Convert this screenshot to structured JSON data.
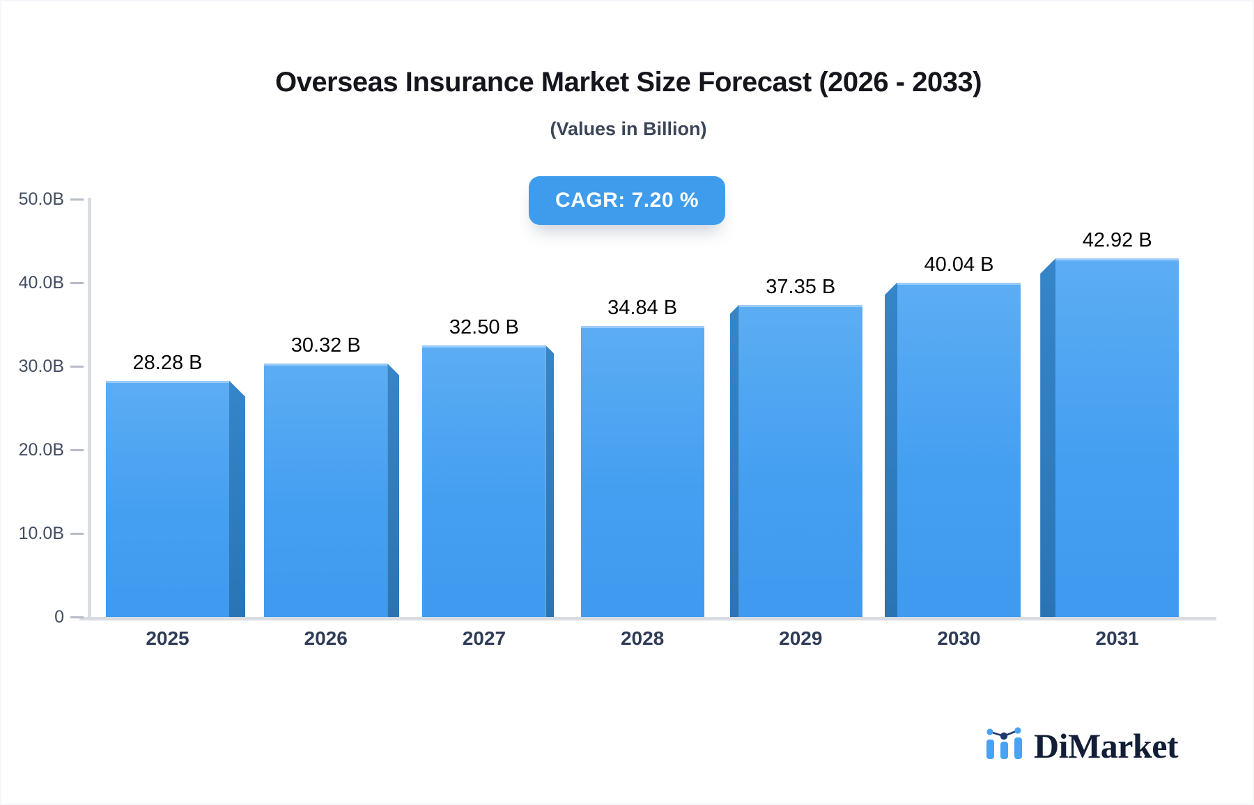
{
  "page": {
    "title": "Overseas Insurance Market Size Forecast (2026 - 2033)",
    "subtitle": "(Values in Billion)",
    "cagr_label": "CAGR: 7.20 %"
  },
  "logo": {
    "text": "DiMarket",
    "icon": "mini-bar-line-chart-icon"
  },
  "chart_data": {
    "type": "bar",
    "title": "Overseas Insurance Market Size Forecast (2026 - 2033)",
    "subtitle": "(Values in Billion)",
    "unit": "Billion",
    "cagr_percent": 7.2,
    "categories": [
      "2025",
      "2026",
      "2027",
      "2028",
      "2029",
      "2030",
      "2031"
    ],
    "values": [
      28.28,
      30.32,
      32.5,
      34.84,
      37.35,
      40.04,
      42.92
    ],
    "value_labels": [
      "28.28 B",
      "30.32 B",
      "32.50 B",
      "34.84 B",
      "37.35 B",
      "40.04 B",
      "42.92 B"
    ],
    "y_axis": {
      "max": 50,
      "ticks": [
        0,
        10,
        20,
        30,
        40,
        50
      ],
      "tick_labels": [
        "0",
        "10.0B",
        "20.0B",
        "30.0B",
        "40.0B",
        "50.0B"
      ]
    },
    "grid": false,
    "legend": "none",
    "colors": {
      "bar_face_top": "#5cadf3",
      "bar_face_bottom": "#3f9af0",
      "bar_side": "#2e7cbe",
      "badge_bg": "#3f9ced",
      "axis": "#d9dce2",
      "value_label": "#050505",
      "year_label": "#2f3c57"
    }
  }
}
